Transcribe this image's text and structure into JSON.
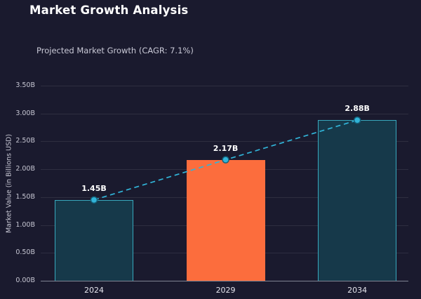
{
  "chart_data": {
    "type": "bar",
    "title": "Market Growth Analysis",
    "subtitle": "Projected Market Growth (CAGR: 7.1%)",
    "categories": [
      "2024",
      "2029",
      "2034"
    ],
    "values": [
      1.45,
      2.17,
      2.88
    ],
    "value_labels": [
      "1.45B",
      "2.17B",
      "2.88B"
    ],
    "xlabel": "",
    "ylabel": "Market Value (in Billions USD)",
    "ylim": [
      0,
      3.5
    ],
    "ytick_step": 0.5,
    "ytick_labels": [
      "0.00B",
      "0.50B",
      "1.00B",
      "1.50B",
      "2.00B",
      "2.50B",
      "3.00B",
      "3.50B"
    ],
    "grid": true,
    "legend": false,
    "overlay": {
      "type": "line",
      "style": "dashed",
      "connects": "bar-tops",
      "values": [
        1.45,
        2.17,
        2.88
      ]
    },
    "colors": {
      "background": "#1a1a2e",
      "title": "#ffffff",
      "subtitle": "#c9c9d6",
      "grid": "#2e2e40",
      "axis": "#7f8494",
      "tick": "#c6c6d2",
      "line": "#31b4d8",
      "marker": "#31b4d8",
      "marker_edge": "#14607a",
      "bar_fills": [
        "#16394a",
        "#fc6d3d",
        "#16394a"
      ],
      "bar_borders": [
        "#38a8bd",
        "#fc6d3d",
        "#38a8bd"
      ],
      "value_label": "#ffffff"
    }
  }
}
